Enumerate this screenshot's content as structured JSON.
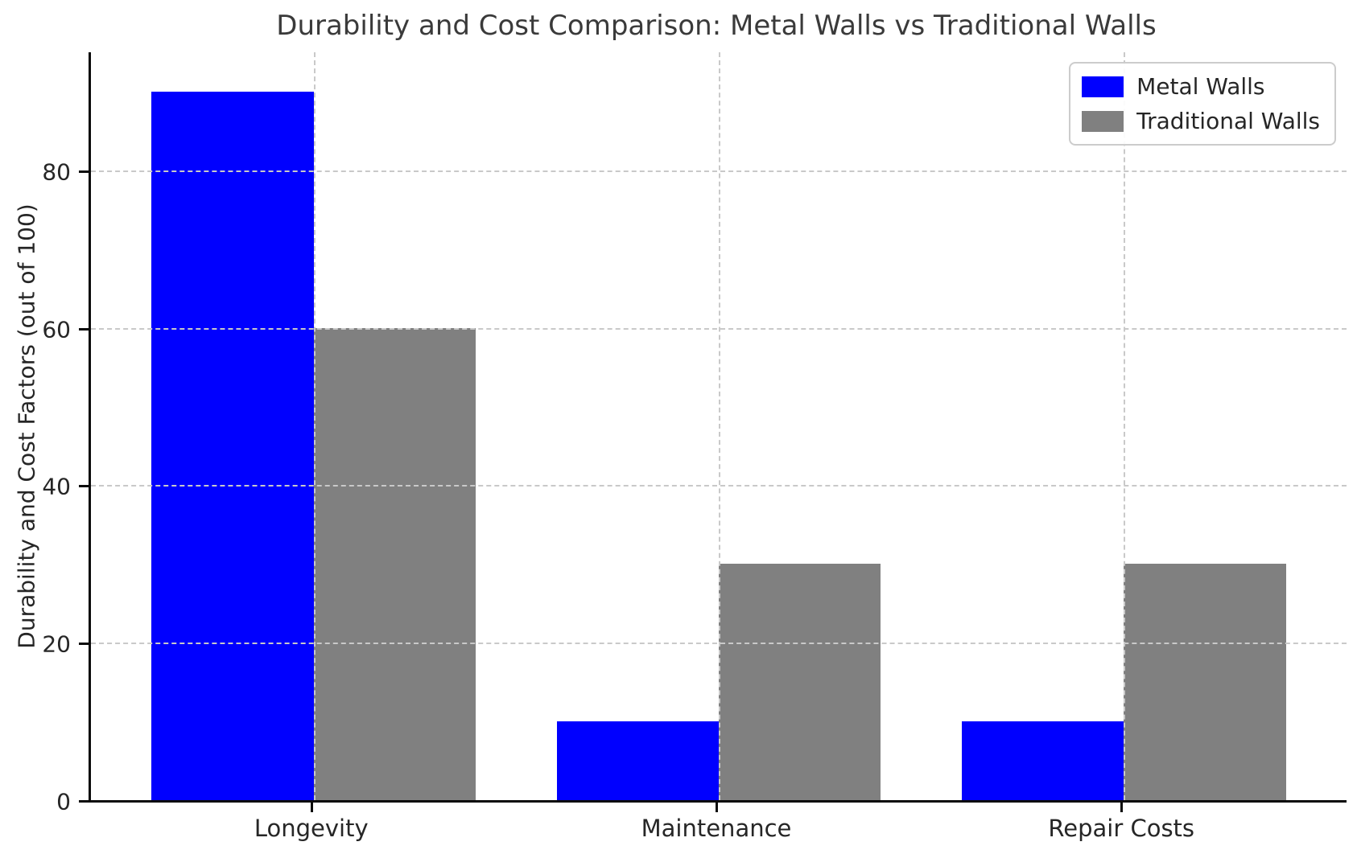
{
  "chart_data": {
    "type": "bar",
    "title": "Durability and Cost Comparison: Metal Walls vs Traditional Walls",
    "xlabel": "",
    "ylabel": "Durability and Cost Factors (out of 100)",
    "categories": [
      "Longevity",
      "Maintenance",
      "Repair Costs"
    ],
    "series": [
      {
        "name": "Metal Walls",
        "color": "#0000ff",
        "values": [
          90,
          10,
          10
        ]
      },
      {
        "name": "Traditional Walls",
        "color": "#808080",
        "values": [
          60,
          30,
          30
        ]
      }
    ],
    "ylim": [
      0,
      95
    ],
    "yticks": [
      0,
      20,
      40,
      60,
      80
    ],
    "xlim": [
      -0.55,
      2.55
    ],
    "bar_width": 0.4,
    "grid": true,
    "grid_style": "dashed",
    "grid_over_bars": true,
    "legend_position": "upper right",
    "spine_color": "#0a0a0a",
    "text_color": "#262626",
    "title_color": "#3a3a3a",
    "background_color": "#ffffff"
  }
}
